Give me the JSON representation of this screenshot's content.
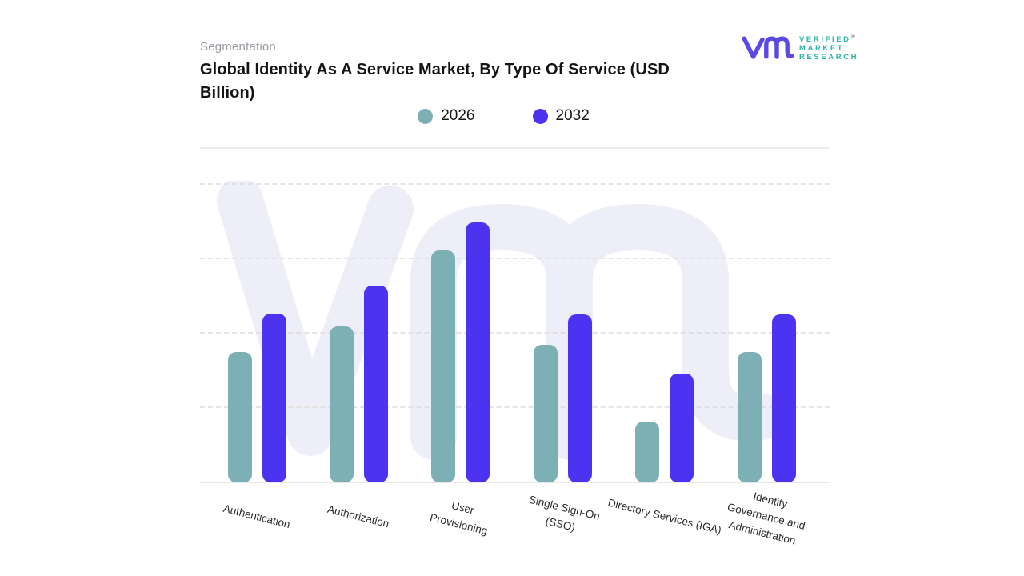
{
  "header": {
    "eyebrow": "Segmentation",
    "title": "Global Identity As A Service Market, By Type Of Service (USD Billion)",
    "title_lines": [
      "Global Identity As A Service Market, By Type Of Service (USD",
      "Billion)"
    ]
  },
  "brand": {
    "name_lines": [
      "VERIFIED",
      "MARKET",
      "RESEARCH"
    ],
    "registered": "®",
    "mark_color": "#5A49E5",
    "text_color": "#2FB3A9"
  },
  "legend": {
    "items": [
      {
        "label": "2026",
        "color": "#7DB0B5"
      },
      {
        "label": "2032",
        "color": "#4B33F0"
      }
    ]
  },
  "chart_data": {
    "type": "bar",
    "title": "Global Identity As A Service Market, By Type Of Service (USD Billion)",
    "unit": "USD Billion",
    "categories": [
      "Authentication",
      "Authorization",
      "User Provisioning",
      "Single Sign-On (SSO)",
      "Directory Services (IGA)",
      "Identity Governance and Administration"
    ],
    "categories_display": [
      [
        "Authentication"
      ],
      [
        "Authorization"
      ],
      [
        "User",
        "Provisioning"
      ],
      [
        "Single Sign-On",
        "(SSO)"
      ],
      [
        "Directory Services (IGA)"
      ],
      [
        "Identity",
        "Governance and",
        "Administration"
      ]
    ],
    "series": [
      {
        "name": "2026",
        "color": "#7DB0B5",
        "values": [
          1.75,
          2.1,
          3.12,
          1.85,
          0.82,
          1.75
        ]
      },
      {
        "name": "2032",
        "color": "#4B33F0",
        "values": [
          2.27,
          2.65,
          3.49,
          2.26,
          1.46,
          2.26
        ]
      }
    ],
    "value_axis": {
      "labels_visible": false,
      "min": 0,
      "gridlines": 4,
      "values_estimated_in_gridline_units": true
    },
    "legend_position": "top-center",
    "grid_style": "dashed-horizontal",
    "bar_corner_radius_px": 10,
    "category_label_rotation_deg": 14
  }
}
